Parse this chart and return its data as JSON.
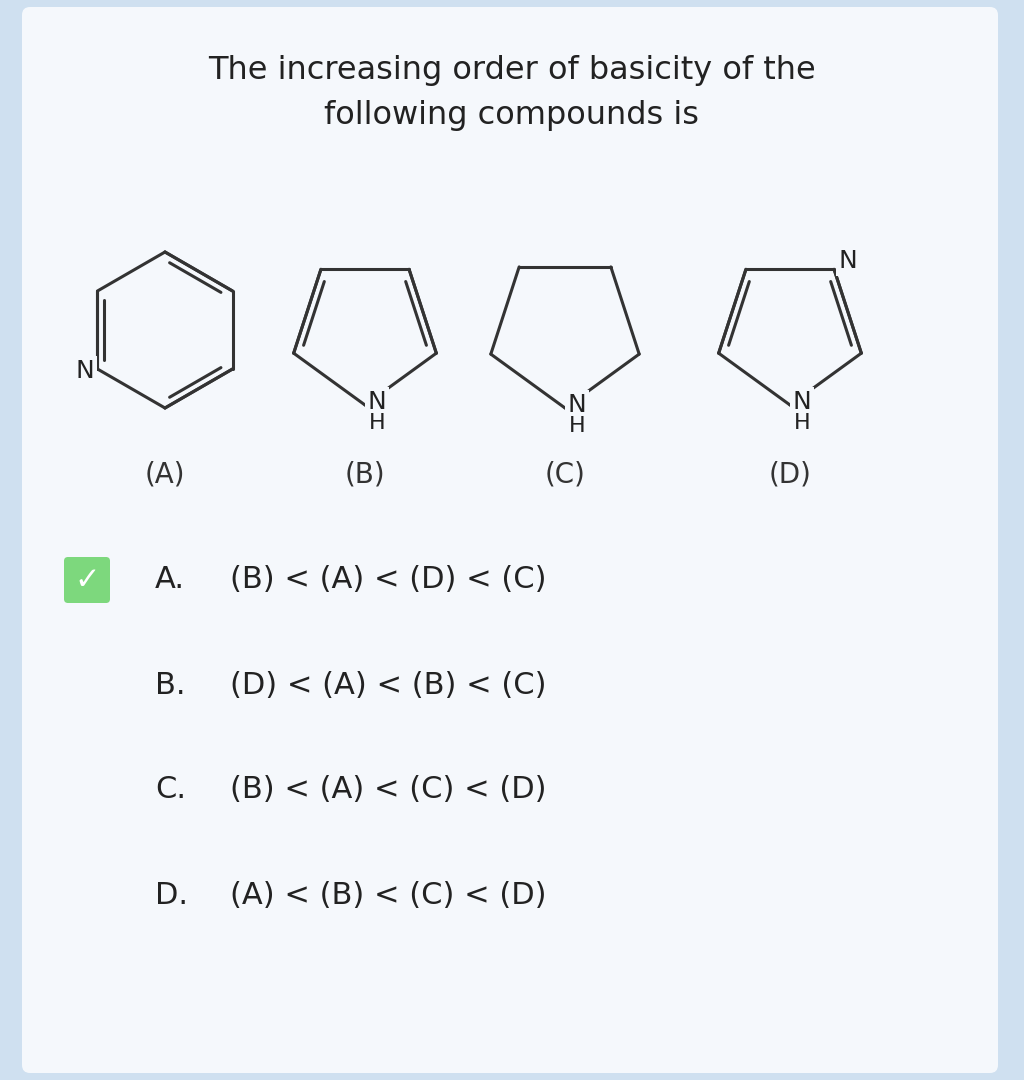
{
  "title_line1": "The increasing order of basicity of the",
  "title_line2": "following compounds is",
  "bg_color": "#cfe0f0",
  "white_bg": "#f5f8fc",
  "title_fontsize": 23,
  "options": [
    {
      "label": "A.",
      "text": "(B) < (A) < (D) < (C)",
      "correct": true
    },
    {
      "label": "B.",
      "text": "(D) < (A) < (B) < (C)",
      "correct": false
    },
    {
      "label": "C.",
      "text": "(B) < (A) < (C) < (D)",
      "correct": false
    },
    {
      "label": "D.",
      "text": "(A) < (B) < (C) < (D)",
      "correct": false
    }
  ],
  "compound_labels": [
    "(A)",
    "(B)",
    "(C)",
    "(D)"
  ],
  "check_color": "#7dd87d",
  "option_fontsize": 22,
  "label_fontsize": 22,
  "compound_label_fontsize": 20,
  "lw": 2.2
}
